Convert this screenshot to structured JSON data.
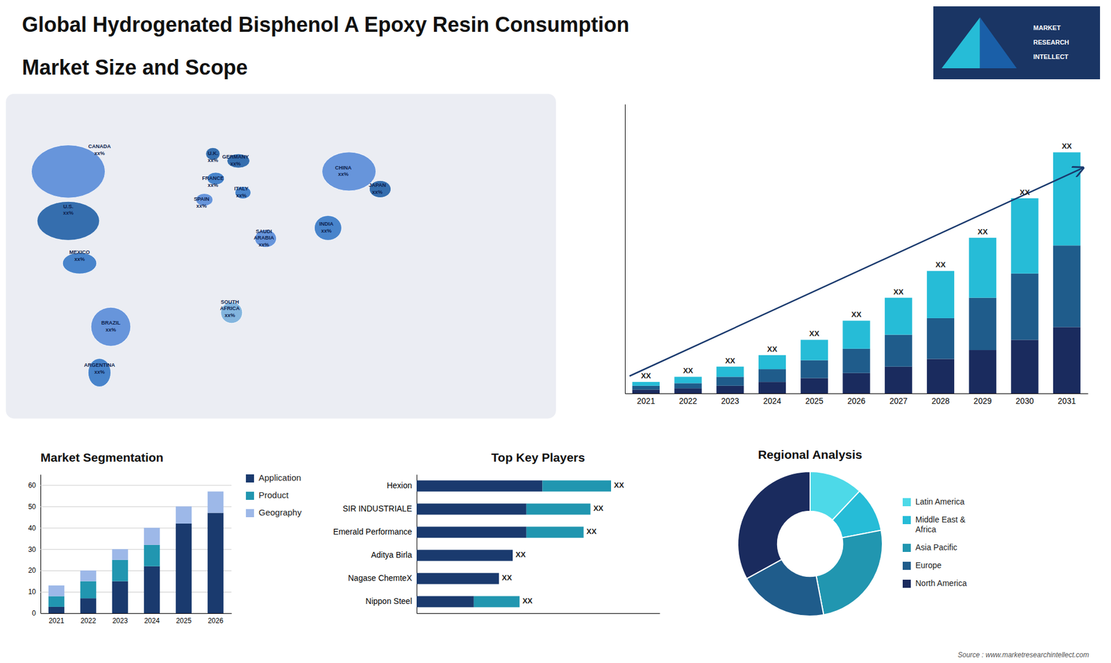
{
  "title": "Global Hydrogenated Bisphenol A Epoxy Resin Consumption",
  "subtitle": "Market Size and Scope",
  "annotations": [
    "Source : www.marketresearchintellect.com",
    "MARKET",
    "RESEARCH",
    "INTELLECT"
  ],
  "chart_data": [
    {
      "type": "bar",
      "stacked": true,
      "tick_labels": "x",
      "categories": [
        "2021",
        "2022",
        "2023",
        "2024",
        "2025",
        "2026",
        "2027",
        "2028",
        "2029",
        "2030",
        "2031"
      ],
      "series": [
        {
          "color": "#1a2b5e",
          "values": [
            1.5,
            2.0,
            3.0,
            4.5,
            6.0,
            8.0,
            10.5,
            13.5,
            17.0,
            21.0,
            26.0
          ]
        },
        {
          "color": "#1f5c8b",
          "values": [
            1.5,
            2.0,
            3.5,
            5.0,
            7.0,
            9.5,
            12.5,
            16.0,
            20.5,
            26.0,
            32.0
          ]
        },
        {
          "color": "#26bcd7",
          "values": [
            1.5,
            2.5,
            4.0,
            5.5,
            8.0,
            11.0,
            14.5,
            18.5,
            23.5,
            29.5,
            36.5
          ]
        }
      ],
      "annotations": [
        "XX",
        "XX",
        "XX",
        "XX",
        "XX",
        "XX",
        "XX",
        "XX",
        "XX",
        "XX",
        "XX"
      ],
      "ylim": [
        0,
        113.4
      ],
      "yticks": [],
      "grid": false
    },
    {
      "type": "bar",
      "stacked": true,
      "title": "Market Segmentation",
      "categories": [
        "2021",
        "2022",
        "2023",
        "2024",
        "2025",
        "2026"
      ],
      "series": [
        {
          "name": "Application",
          "color": "#1a3a6e",
          "values": [
            3,
            7,
            15,
            22,
            42,
            47
          ]
        },
        {
          "name": "Product",
          "color": "#2196b0",
          "values": [
            5,
            8,
            10,
            10,
            0,
            0
          ]
        },
        {
          "name": "Geography",
          "color": "#9db8e8",
          "values": [
            5,
            5,
            5,
            8,
            8,
            10
          ]
        }
      ],
      "ylim": [
        0,
        65
      ],
      "yticks": [
        0,
        10,
        20,
        30,
        40,
        50,
        60
      ],
      "grid": true,
      "legend": "right"
    },
    {
      "type": "bar",
      "stacked": true,
      "orientation": "horizontal",
      "title": "Top Key Players",
      "tick_labels": "y",
      "categories": [
        "Hexion",
        "SIR INDUSTRIALE",
        "Emerald Performance",
        "Aditya Birla",
        "Nagase ChemteX",
        "Nippon Steel"
      ],
      "series": [
        {
          "color": "#1a3a6e",
          "values": [
            5.5,
            4.8,
            4.8,
            4.2,
            3.6,
            2.5
          ]
        },
        {
          "color": "#2196b0",
          "values": [
            3.0,
            2.8,
            2.5,
            0.0,
            0.0,
            2.0
          ]
        }
      ],
      "annotations": [
        "XX",
        "XX",
        "XX",
        "XX",
        "XX",
        "XX"
      ],
      "xlim": [
        0,
        10.625
      ],
      "xticks": [],
      "grid": false
    },
    {
      "type": "pie",
      "title": "Regional Analysis",
      "categories": [
        "Latin America",
        "Middle East &\nAfrica",
        "Asia Pacific",
        "Europe",
        "North America"
      ],
      "values": [
        12,
        10,
        25,
        20,
        33
      ],
      "colors": [
        "#4dd9e8",
        "#26bcd7",
        "#2196b0",
        "#1f5c8b",
        "#1a2b5e"
      ],
      "legend": "right"
    },
    {
      "type": "map",
      "annotations": [
        "CANADA\nxx%",
        "U.S.\nxx%",
        "MEXICO\nxx%",
        "BRAZIL\nxx%",
        "ARGENTINA\nxx%",
        "U.K.\nxx%",
        "FRANCE\nxx%",
        "SPAIN\nxx%",
        "GERMANY\nxx%",
        "ITALY\nxx%",
        "SAUDI\nARABIA\nxx%",
        "SOUTH\nAFRICA\nxx%",
        "CHINA\nxx%",
        "JAPAN\nxx%",
        "INDIA\nxx%"
      ],
      "colors": [
        "#5b8dd9",
        "#2563a8",
        "#3a7bc8",
        "#5b8dd9",
        "#3a7bc8",
        "#2563a8",
        "#3a7bc8",
        "#5b8dd9",
        "#2563a8",
        "#3a7bc8",
        "#5b8dd9",
        "#7ab0dc",
        "#5b8dd9",
        "#2563a8",
        "#3a7bc8"
      ]
    }
  ]
}
